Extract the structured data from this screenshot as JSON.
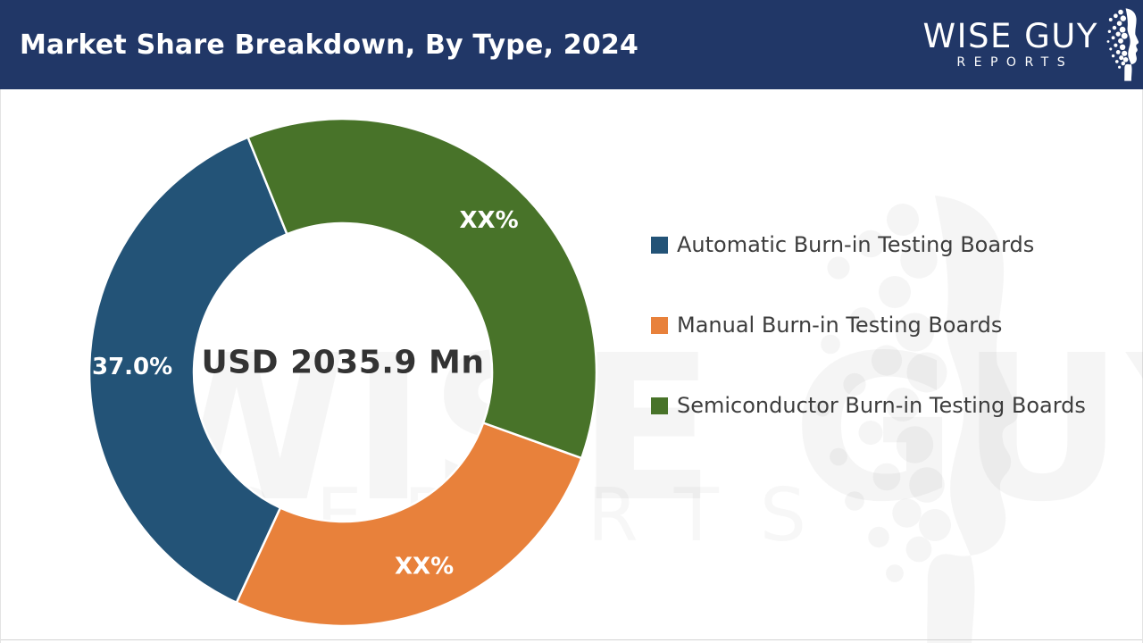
{
  "header": {
    "title": "Market Share Breakdown, By Type, 2024",
    "bg_color": "#213767",
    "logo": {
      "line1": "WISE GUY",
      "line2": "REPORTS"
    }
  },
  "watermark": {
    "line1": "WISE GUY",
    "line2": "REPORTS"
  },
  "chart_data": {
    "type": "pie",
    "title": "Market Share Breakdown, By Type, 2024",
    "donut": true,
    "center_label": "USD 2035.9 Mn",
    "start_angle_deg": 112,
    "counterclockwise": true,
    "legend_position": "right",
    "slices": [
      {
        "name": "Automatic Burn-in Testing Boards",
        "value_pct": 37.0,
        "label": "37.0%",
        "color": "#235377"
      },
      {
        "name": "Manual Burn-in Testing Boards",
        "value_pct": 26.4,
        "label": "XX%",
        "color": "#E8813B"
      },
      {
        "name": "Semiconductor Burn-in Testing Boards",
        "value_pct": 36.6,
        "label": "XX%",
        "color": "#487329"
      }
    ]
  }
}
